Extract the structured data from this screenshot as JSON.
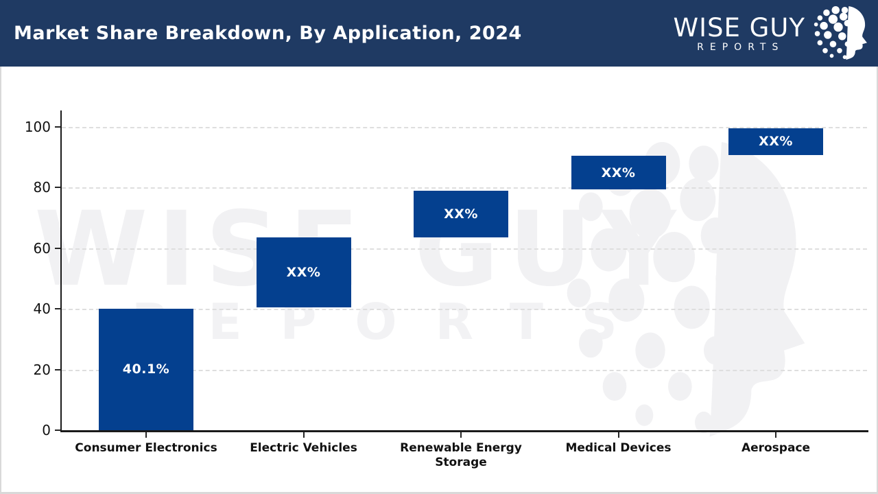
{
  "header": {
    "title": "Market Share Breakdown, By Application, 2024",
    "logo": {
      "line1": "WISE GUY",
      "line2": "REPORTS"
    }
  },
  "watermark": {
    "line1": "WISE GUY",
    "line2": "REPORTS"
  },
  "chart_data": {
    "type": "bar",
    "subtype": "floating-waterfall",
    "title": "Market Share Breakdown, By Application, 2024",
    "categories": [
      "Consumer Electronics",
      "Electric Vehicles",
      "Renewable Energy Storage",
      "Medical Devices",
      "Aerospace"
    ],
    "bars": [
      {
        "category": "Consumer Electronics",
        "start": 0,
        "end": 40.1,
        "label": "40.1%"
      },
      {
        "category": "Electric Vehicles",
        "start": 40.6,
        "end": 63.6,
        "label": "XX%"
      },
      {
        "category": "Renewable Energy Storage",
        "start": 63.6,
        "end": 79.0,
        "label": "XX%"
      },
      {
        "category": "Medical Devices",
        "start": 79.4,
        "end": 90.5,
        "label": "XX%"
      },
      {
        "category": "Aerospace",
        "start": 90.7,
        "end": 99.6,
        "label": "XX%"
      }
    ],
    "ylim": [
      0,
      100
    ],
    "yticks": [
      0,
      20,
      40,
      60,
      80,
      100
    ],
    "xlabel": "",
    "ylabel": "",
    "grid": "horizontal-dashed",
    "legend": "none",
    "bar_color": "#04408f",
    "bar_label_color": "#ffffff"
  },
  "colors": {
    "header_bg": "#1f3a63",
    "bar": "#04408f",
    "axis": "#1a1a1a",
    "gridline": "#dedede",
    "border": "#d9d9d9",
    "watermark": "#f1f1f3"
  }
}
